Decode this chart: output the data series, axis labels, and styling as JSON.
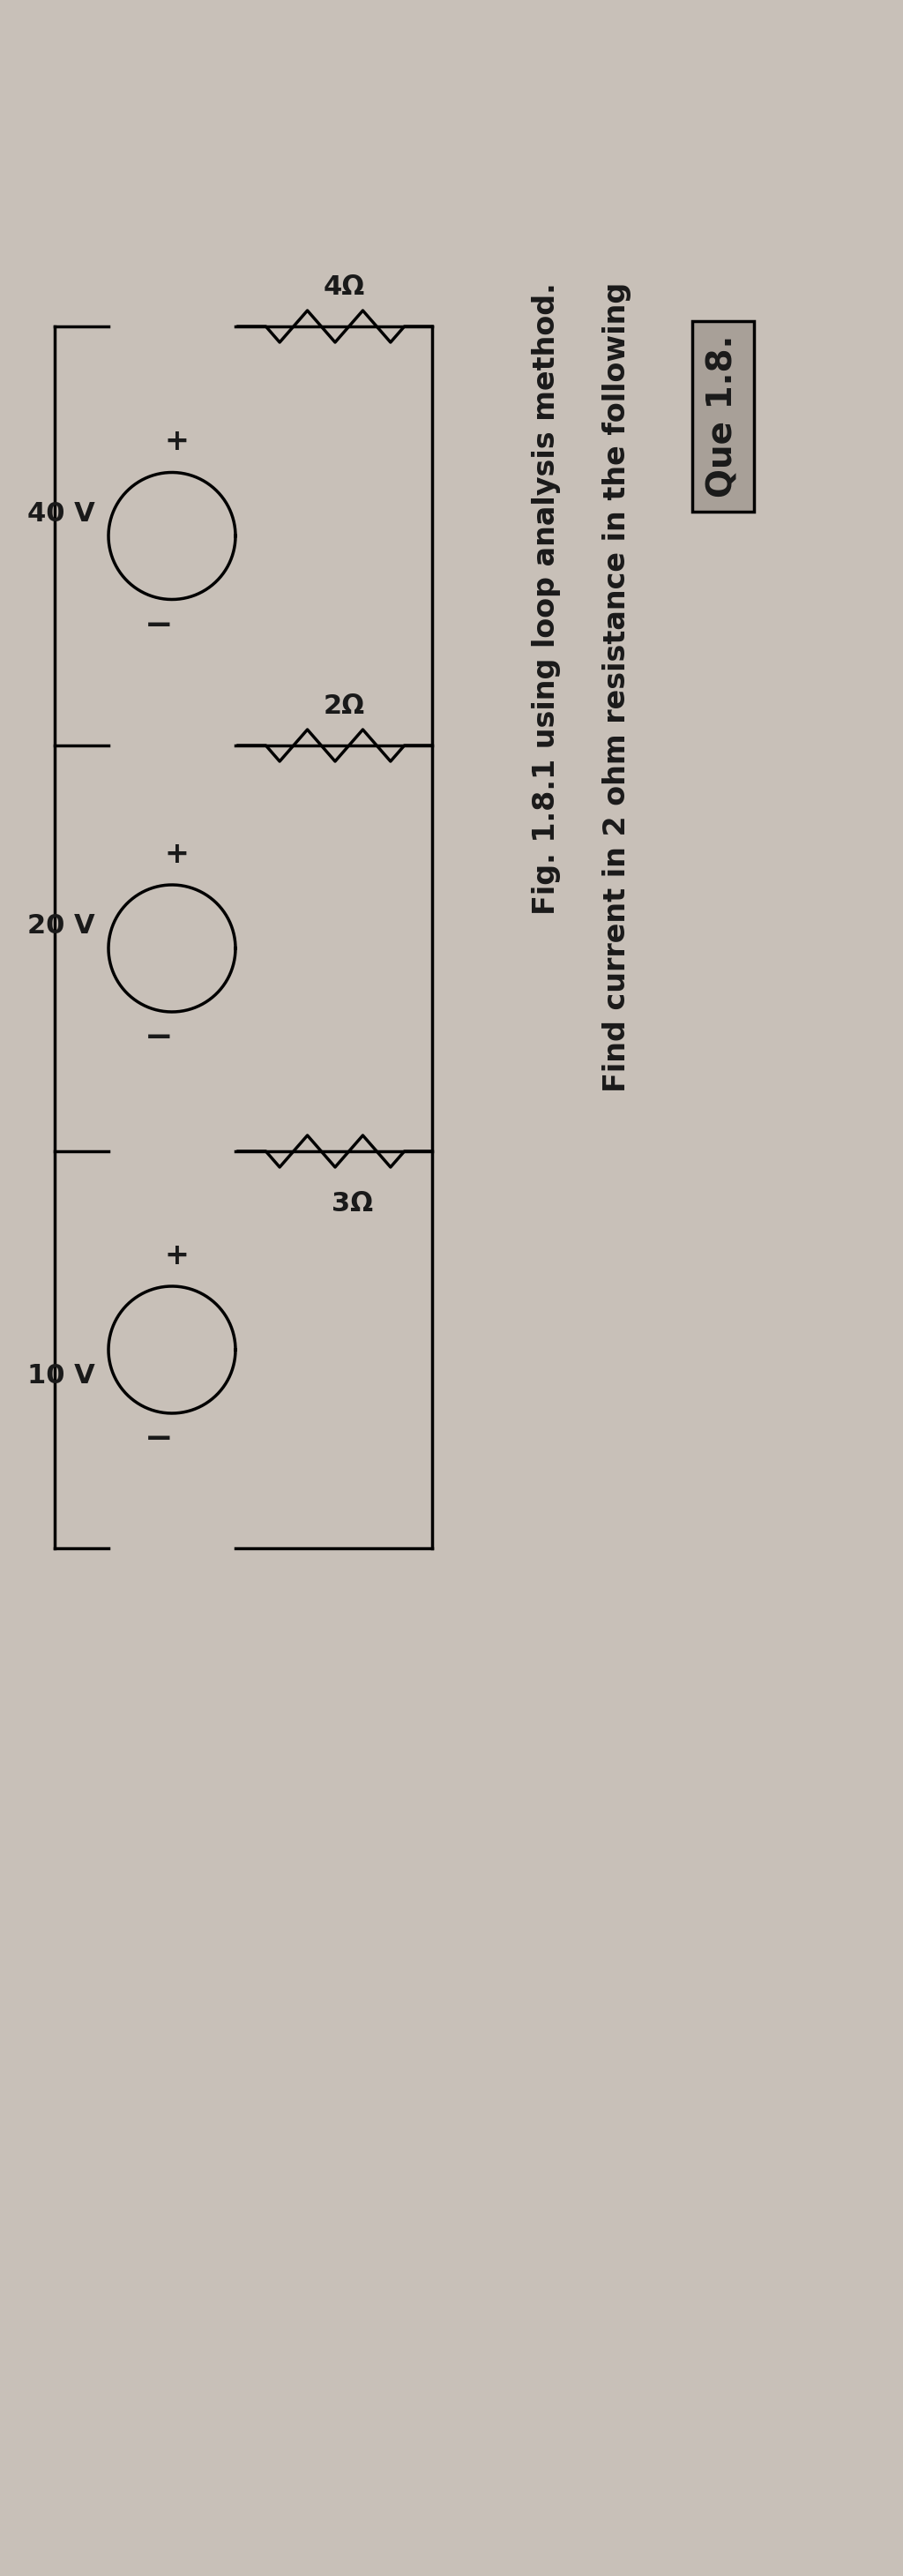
{
  "bg_color": "#c8c0b8",
  "title_box_text": "Que 1.8.",
  "title_box_bg": "#b0a8a0",
  "line1": "Find current in 2 ohm resistance in the following",
  "line2": "Fig. 1.8.1 using loop analysis method.",
  "sources": [
    {
      "label": "40 V",
      "minus_top": true
    },
    {
      "label": "20 V",
      "minus_top": true
    },
    {
      "label": "10 V",
      "minus_top": true
    }
  ],
  "resistors": [
    {
      "label": "4Ω"
    },
    {
      "label": "2Ω"
    },
    {
      "label": "3Ω"
    }
  ],
  "circuit_lw": 2.0,
  "text_color": "#1a1a1a"
}
